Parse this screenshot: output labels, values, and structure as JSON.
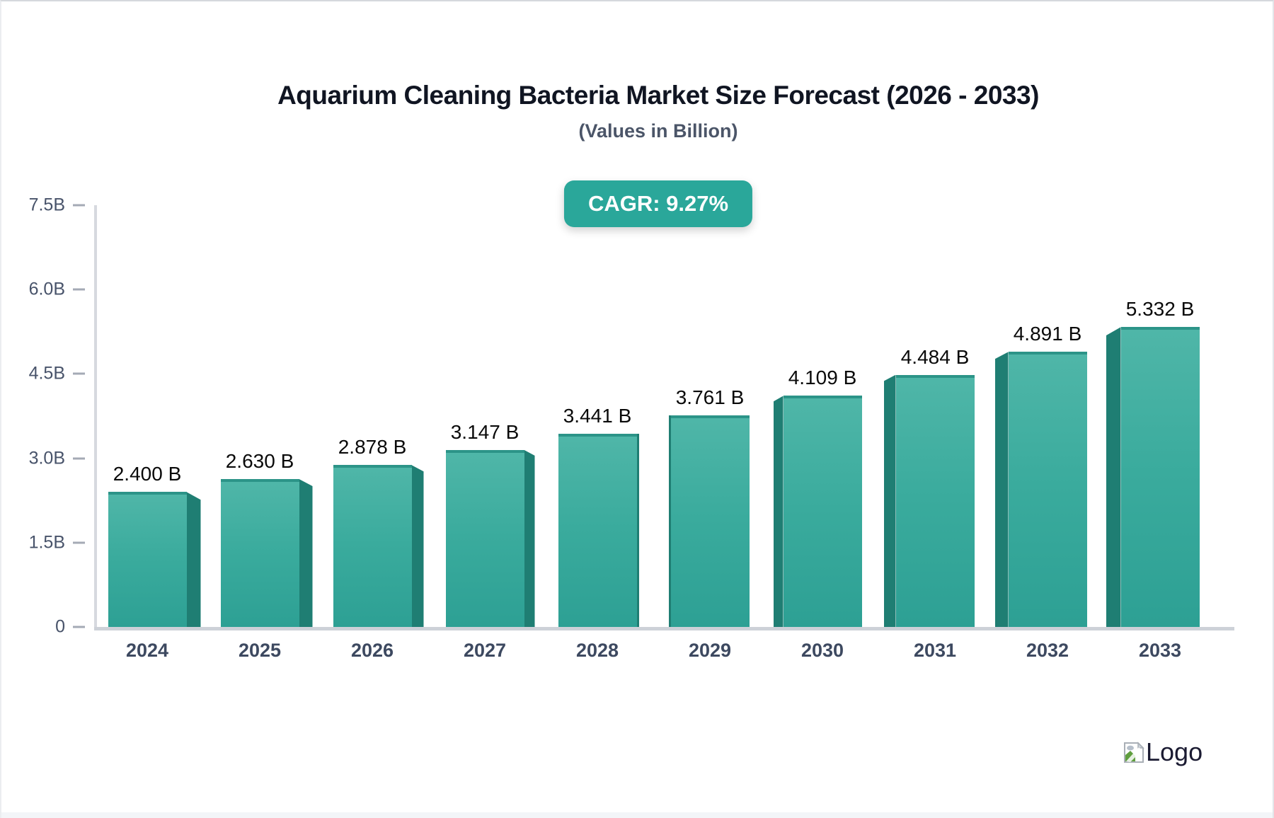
{
  "header": {
    "title": "Aquarium Cleaning Bacteria Market Size Forecast (2026 - 2033)",
    "subtitle": "(Values in Billion)"
  },
  "badge": {
    "label": "CAGR: 9.27%",
    "color": "#2aa79a"
  },
  "chart_data": {
    "type": "bar",
    "title": "Aquarium Cleaning Bacteria Market Size Forecast (2026 - 2033)",
    "subtitle": "(Values in Billion)",
    "cagr_label": "CAGR: 9.27%",
    "categories": [
      "2024",
      "2025",
      "2026",
      "2027",
      "2028",
      "2029",
      "2030",
      "2031",
      "2032",
      "2033"
    ],
    "values": [
      2.4,
      2.63,
      2.878,
      3.147,
      3.441,
      3.761,
      4.109,
      4.484,
      4.891,
      5.332
    ],
    "value_labels": [
      "2.400 B",
      "2.630 B",
      "2.878 B",
      "3.147 B",
      "3.441 B",
      "3.761 B",
      "4.109 B",
      "4.484 B",
      "4.891 B",
      "5.332 B"
    ],
    "ytick_labels": [
      "0",
      "1.5B",
      "3.0B",
      "4.5B",
      "6.0B",
      "7.5B"
    ],
    "ylim": [
      0,
      7.5
    ],
    "ytick_step": 1.5,
    "grid": false,
    "legend": "none",
    "bar_color_top": "#4fb6a8",
    "bar_color_bottom": "#2da094",
    "bar_side_color": "#1f7e73",
    "axis_color": "#cdd1d8",
    "style": "3d-perspective-columns"
  },
  "footer": {
    "logo_alt": "Logo"
  }
}
